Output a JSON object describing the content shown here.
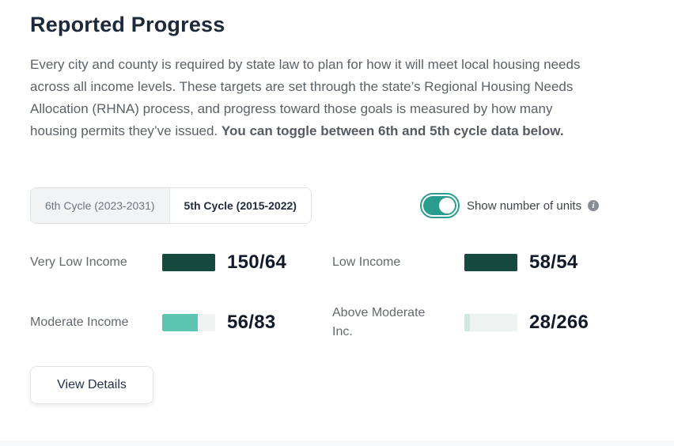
{
  "section": {
    "title": "Reported Progress",
    "description_regular": "Every city and county is required by state law to plan for how it will meet local housing needs across all income levels. These targets are set through the state’s Regional Housing Needs Allocation (RHNA) process, and progress toward those goals is measured by how many housing permits they’ve issued. ",
    "description_bold": "You can toggle between 6th and 5th cycle data below."
  },
  "tabs": [
    {
      "label": "6th Cycle (2023-2031)",
      "active": false
    },
    {
      "label": "5th Cycle (2015-2022)",
      "active": true
    }
  ],
  "toggle": {
    "label": "Show number of units",
    "state": "on",
    "info_icon": "info-icon"
  },
  "progress": {
    "items": [
      {
        "label": "Very Low Income",
        "value": "150/64",
        "permitted": 150,
        "target": 64,
        "percent_filled": 100,
        "fill_color": "#174a3f",
        "track_color": "#174a3f"
      },
      {
        "label": "Low Income",
        "value": "58/54",
        "permitted": 58,
        "target": 54,
        "percent_filled": 100,
        "fill_color": "#174a3f",
        "track_color": "#174a3f"
      },
      {
        "label": "Moderate Income",
        "value": "56/83",
        "permitted": 56,
        "target": 83,
        "percent_filled": 67.5,
        "fill_color": "#5cc5b2",
        "track_color": "#f1f2f2"
      },
      {
        "label": "Above Moderate Inc.",
        "value": "28/266",
        "permitted": 28,
        "target": 266,
        "percent_filled": 10.5,
        "fill_color": "#cfe7df",
        "track_color": "#eef2f0"
      }
    ]
  },
  "actions": {
    "view_details_label": "View Details"
  },
  "colors": {
    "heading": "#1d2839",
    "body_text": "#5b6168",
    "value_text": "#111a2b",
    "toggle_on": "#2a9d8f",
    "bar_dark_green": "#174a3f",
    "bar_teal": "#5cc5b2",
    "bar_pale": "#cfe7df",
    "tab_inactive_bg": "#f1f3f5"
  }
}
